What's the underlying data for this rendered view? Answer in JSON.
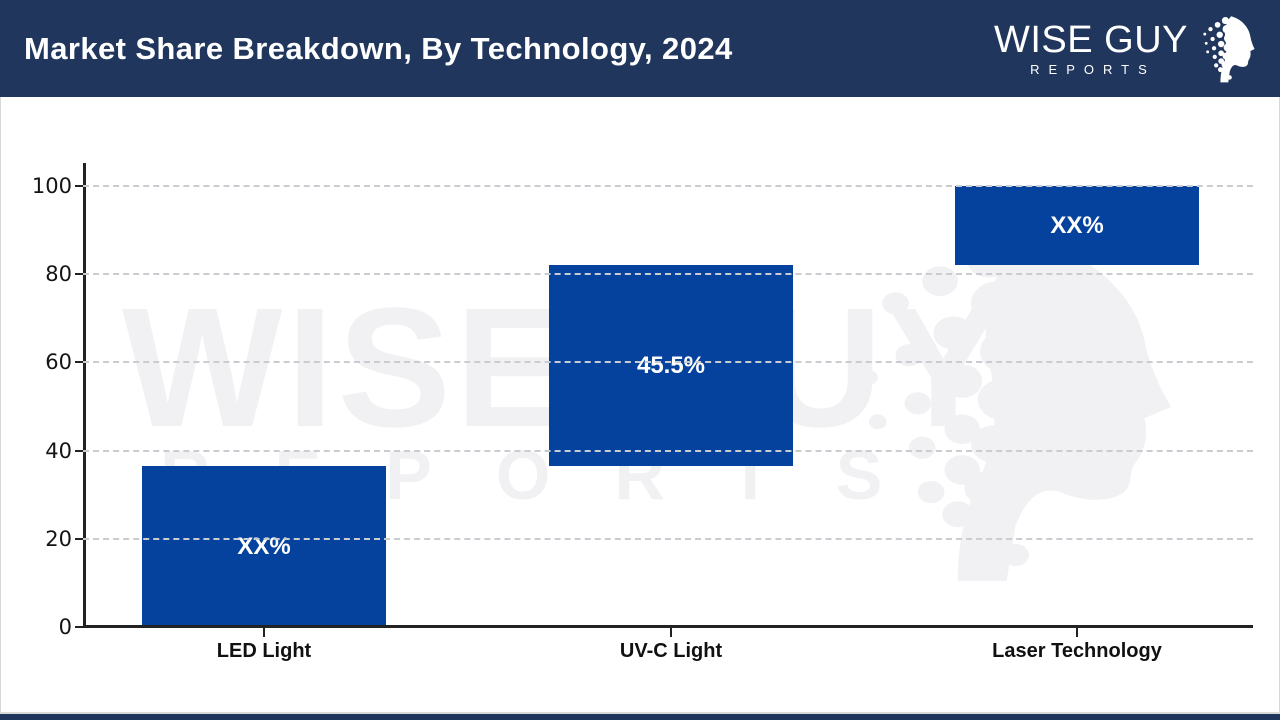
{
  "header": {
    "title": "Market Share Breakdown, By Technology, 2024",
    "brand": {
      "line1": "WISE GUY",
      "line2": "REPORTS"
    }
  },
  "watermark": {
    "line1": "WISE GUY",
    "line2": "REPORTS"
  },
  "colors": {
    "header_bg": "#20365C",
    "footer_bg": "#20365C",
    "bar": "#05429E",
    "axis": "#222222",
    "gridline": "#c9ccd1",
    "watermark": "#f1f1f4"
  },
  "chart_data": {
    "type": "bar",
    "variant": "waterfall",
    "title": "Market Share Breakdown, By Technology, 2024",
    "categories": [
      "LED Light",
      "UV-C Light",
      "Laser Technology"
    ],
    "segments": [
      {
        "category": "LED Light",
        "start": 0,
        "end": 36.5,
        "value": 36.5,
        "label": "XX%"
      },
      {
        "category": "UV-C Light",
        "start": 36.5,
        "end": 82,
        "value": 45.5,
        "label": "45.5%"
      },
      {
        "category": "Laser Technology",
        "start": 82,
        "end": 100,
        "value": 18,
        "label": "XX%"
      }
    ],
    "ylabel": "",
    "xlabel": "",
    "yticks": [
      0,
      20,
      40,
      60,
      80,
      100
    ],
    "ylim": [
      0,
      105
    ],
    "grid": "horizontal-dashed",
    "legend": null,
    "bar_color": "#05429E"
  }
}
